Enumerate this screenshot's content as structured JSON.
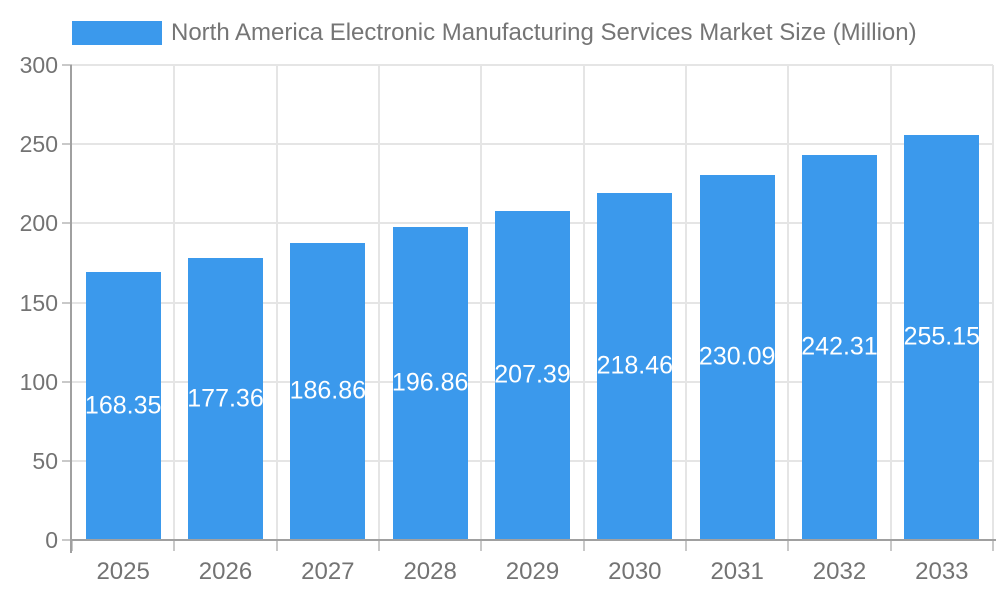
{
  "chart_data": {
    "type": "bar",
    "title": "North America Electronic Manufacturing Services Market Size (Million)",
    "series": [
      {
        "name": "North America Electronic Manufacturing Services Market Size (Million)",
        "values": [
          168.35,
          177.36,
          186.86,
          196.86,
          207.39,
          218.46,
          230.09,
          242.31,
          255.15
        ],
        "value_labels": [
          "168.35",
          "177.36",
          "186.86",
          "196.86",
          "207.39",
          "218.46",
          "230.09",
          "242.31",
          "255.15"
        ]
      }
    ],
    "categories": [
      "2025",
      "2026",
      "2027",
      "2028",
      "2029",
      "2030",
      "2031",
      "2032",
      "2033"
    ],
    "xlabel": "",
    "ylabel": "",
    "ylim": [
      0,
      300
    ],
    "yticks": [
      0,
      50,
      100,
      150,
      200,
      250,
      300
    ],
    "ytick_labels": [
      "0",
      "50",
      "100",
      "150",
      "200",
      "250",
      "300"
    ],
    "grid": true,
    "legend_position": "top-left",
    "value_label_position": "middle-of-bar",
    "colors": {
      "bar": "#3B99EC",
      "value_label_text": "#FFFFFF",
      "axis_text": "#737373",
      "title_text": "#757575",
      "grid_line": "#E5E5E5",
      "tick_line": "#C9C9C9",
      "axis_line": "#A0A0A0",
      "background": "#FFFFFF"
    }
  }
}
